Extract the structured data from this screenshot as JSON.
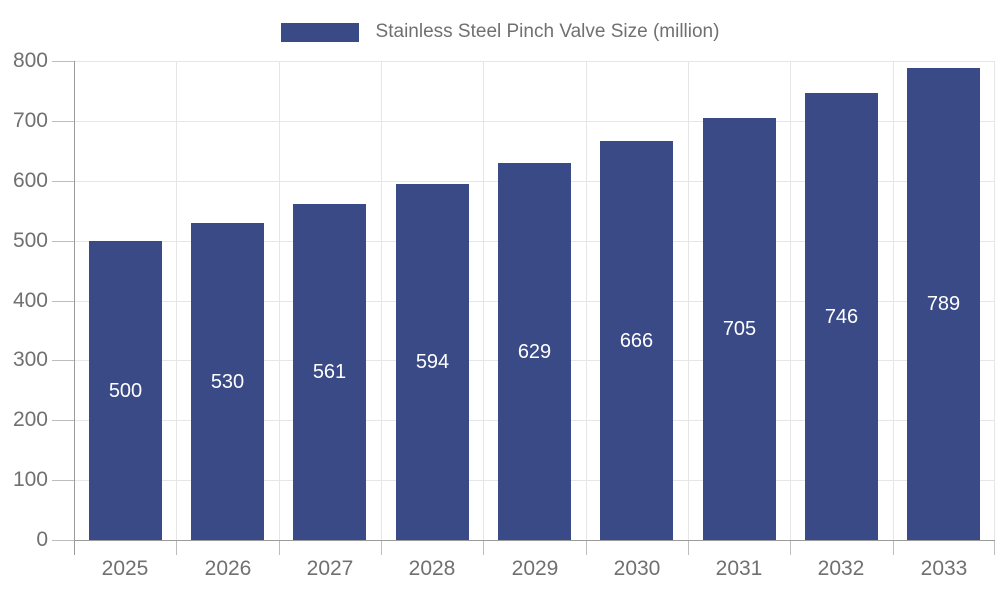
{
  "chart_data": {
    "type": "bar",
    "title": "",
    "legend": {
      "label": "Stainless Steel Pinch Valve Size (million)",
      "position": "top-center"
    },
    "categories": [
      "2025",
      "2026",
      "2027",
      "2028",
      "2029",
      "2030",
      "2031",
      "2032",
      "2033"
    ],
    "series": [
      {
        "name": "Stainless Steel Pinch Valve Size (million)",
        "values": [
          500,
          530,
          561,
          594,
          629,
          666,
          705,
          746,
          789
        ]
      }
    ],
    "xlabel": "",
    "ylabel": "",
    "ylim": [
      0,
      800
    ],
    "ytick_step": 100,
    "yticks": [
      0,
      100,
      200,
      300,
      400,
      500,
      600,
      700,
      800
    ],
    "grid": true,
    "value_labels": "inside-center",
    "colors": {
      "bar": "#3a4a87",
      "axis_text": "#707070",
      "grid": "#e6e6e6",
      "tick": "#bdbdbd",
      "axis_line": "#9a9a9a",
      "value_label": "#ffffff"
    }
  }
}
